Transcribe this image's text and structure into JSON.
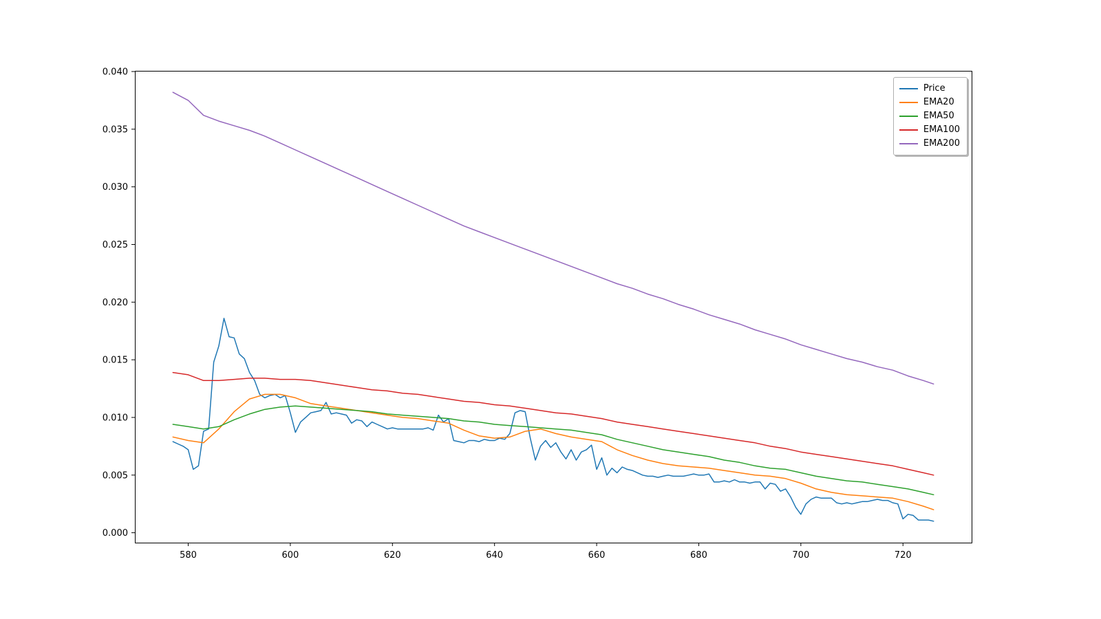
{
  "figure": {
    "background": "#ffffff",
    "axes_frame_color": "#000000"
  },
  "chart_data": {
    "type": "line",
    "title": "",
    "xlabel": "",
    "ylabel": "",
    "grid": false,
    "xlim": [
      569.55,
      733.45
    ],
    "ylim": [
      -0.00086,
      0.04006
    ],
    "x_ticks": [
      580,
      600,
      620,
      640,
      660,
      680,
      700,
      720
    ],
    "y_ticks": [
      0.0,
      0.005,
      0.01,
      0.015,
      0.02,
      0.025,
      0.03,
      0.035,
      0.04
    ],
    "legend": {
      "position": "upper right",
      "entries": [
        "Price",
        "EMA20",
        "EMA50",
        "EMA100",
        "EMA200"
      ]
    },
    "series": [
      {
        "name": "Price",
        "color": "#1f77b4",
        "x_start": 577,
        "x_step": 1,
        "y": [
          0.0079,
          0.0077,
          0.0075,
          0.0072,
          0.0055,
          0.0058,
          0.0088,
          0.009,
          0.0148,
          0.0162,
          0.0186,
          0.017,
          0.0169,
          0.0155,
          0.0151,
          0.0139,
          0.0132,
          0.012,
          0.0117,
          0.0119,
          0.012,
          0.0117,
          0.0119,
          0.0104,
          0.0087,
          0.0096,
          0.01,
          0.0104,
          0.0105,
          0.0106,
          0.0113,
          0.0103,
          0.0104,
          0.0103,
          0.0102,
          0.0095,
          0.0098,
          0.0097,
          0.0092,
          0.0096,
          0.0094,
          0.0092,
          0.009,
          0.0091,
          0.009,
          0.009,
          0.009,
          0.009,
          0.009,
          0.009,
          0.0091,
          0.0089,
          0.0102,
          0.0096,
          0.0099,
          0.008,
          0.0079,
          0.0078,
          0.008,
          0.008,
          0.0079,
          0.0081,
          0.008,
          0.008,
          0.0082,
          0.0081,
          0.0086,
          0.0104,
          0.0106,
          0.0105,
          0.0082,
          0.0063,
          0.0075,
          0.008,
          0.0074,
          0.0078,
          0.007,
          0.0064,
          0.0072,
          0.0063,
          0.007,
          0.0072,
          0.0076,
          0.0055,
          0.0065,
          0.005,
          0.0056,
          0.0052,
          0.0057,
          0.0055,
          0.0054,
          0.0052,
          0.005,
          0.0049,
          0.0049,
          0.0048,
          0.0049,
          0.005,
          0.0049,
          0.0049,
          0.0049,
          0.005,
          0.0051,
          0.005,
          0.005,
          0.0051,
          0.0044,
          0.0044,
          0.0045,
          0.0044,
          0.0046,
          0.0044,
          0.0044,
          0.0043,
          0.0044,
          0.0044,
          0.0038,
          0.0043,
          0.0042,
          0.0036,
          0.0038,
          0.0031,
          0.0022,
          0.0016,
          0.0025,
          0.0029,
          0.0031,
          0.003,
          0.003,
          0.003,
          0.0026,
          0.0025,
          0.0026,
          0.0025,
          0.0026,
          0.0027,
          0.0027,
          0.0028,
          0.0029,
          0.0028,
          0.0028,
          0.0026,
          0.0025,
          0.0012,
          0.0016,
          0.0015,
          0.0011,
          0.0011,
          0.0011,
          0.001
        ]
      },
      {
        "name": "EMA20",
        "color": "#ff7f0e",
        "x": [
          577,
          580,
          583,
          586,
          589,
          592,
          595,
          598,
          601,
          604,
          607,
          610,
          613,
          616,
          619,
          622,
          625,
          628,
          631,
          634,
          637,
          640,
          643,
          646,
          649,
          652,
          655,
          658,
          661,
          664,
          667,
          670,
          673,
          676,
          679,
          682,
          685,
          688,
          691,
          694,
          697,
          700,
          703,
          706,
          709,
          712,
          715,
          718,
          721,
          724,
          726
        ],
        "y": [
          0.0083,
          0.008,
          0.0078,
          0.009,
          0.0105,
          0.0116,
          0.012,
          0.012,
          0.0117,
          0.0112,
          0.011,
          0.0108,
          0.0106,
          0.0104,
          0.0102,
          0.01,
          0.0099,
          0.0097,
          0.0095,
          0.0089,
          0.0084,
          0.0082,
          0.0083,
          0.0088,
          0.009,
          0.0086,
          0.0083,
          0.0081,
          0.0079,
          0.0072,
          0.0067,
          0.0063,
          0.006,
          0.0058,
          0.0057,
          0.0056,
          0.0054,
          0.0052,
          0.005,
          0.0049,
          0.0047,
          0.0043,
          0.0038,
          0.0035,
          0.0033,
          0.0032,
          0.0031,
          0.003,
          0.0027,
          0.0023,
          0.002
        ]
      },
      {
        "name": "EMA50",
        "color": "#2ca02c",
        "x": [
          577,
          580,
          583,
          586,
          589,
          592,
          595,
          598,
          601,
          604,
          607,
          610,
          613,
          616,
          619,
          622,
          625,
          628,
          631,
          634,
          637,
          640,
          643,
          646,
          649,
          652,
          655,
          658,
          661,
          664,
          667,
          670,
          673,
          676,
          679,
          682,
          685,
          688,
          691,
          694,
          697,
          700,
          703,
          706,
          709,
          712,
          715,
          718,
          721,
          724,
          726
        ],
        "y": [
          0.0094,
          0.0092,
          0.009,
          0.0092,
          0.0098,
          0.0103,
          0.0107,
          0.0109,
          0.011,
          0.0109,
          0.0108,
          0.0107,
          0.0106,
          0.0105,
          0.0103,
          0.0102,
          0.0101,
          0.01,
          0.0099,
          0.0097,
          0.0096,
          0.0094,
          0.0093,
          0.0092,
          0.0091,
          0.009,
          0.0089,
          0.0087,
          0.0085,
          0.0081,
          0.0078,
          0.0075,
          0.0072,
          0.007,
          0.0068,
          0.0066,
          0.0063,
          0.0061,
          0.0058,
          0.0056,
          0.0055,
          0.0052,
          0.0049,
          0.0047,
          0.0045,
          0.0044,
          0.0042,
          0.004,
          0.0038,
          0.0035,
          0.0033
        ]
      },
      {
        "name": "EMA100",
        "color": "#d62728",
        "x": [
          577,
          580,
          583,
          586,
          589,
          592,
          595,
          598,
          601,
          604,
          607,
          610,
          613,
          616,
          619,
          622,
          625,
          628,
          631,
          634,
          637,
          640,
          643,
          646,
          649,
          652,
          655,
          658,
          661,
          664,
          667,
          670,
          673,
          676,
          679,
          682,
          685,
          688,
          691,
          694,
          697,
          700,
          703,
          706,
          709,
          712,
          715,
          718,
          721,
          724,
          726
        ],
        "y": [
          0.0139,
          0.0137,
          0.0132,
          0.0132,
          0.0133,
          0.0134,
          0.0134,
          0.0133,
          0.0133,
          0.0132,
          0.013,
          0.0128,
          0.0126,
          0.0124,
          0.0123,
          0.0121,
          0.012,
          0.0118,
          0.0116,
          0.0114,
          0.0113,
          0.0111,
          0.011,
          0.0108,
          0.0106,
          0.0104,
          0.0103,
          0.0101,
          0.0099,
          0.0096,
          0.0094,
          0.0092,
          0.009,
          0.0088,
          0.0086,
          0.0084,
          0.0082,
          0.008,
          0.0078,
          0.0075,
          0.0073,
          0.007,
          0.0068,
          0.0066,
          0.0064,
          0.0062,
          0.006,
          0.0058,
          0.0055,
          0.0052,
          0.005
        ]
      },
      {
        "name": "EMA200",
        "color": "#9467bd",
        "x": [
          577,
          580,
          583,
          586,
          589,
          592,
          595,
          598,
          601,
          604,
          607,
          610,
          613,
          616,
          619,
          622,
          625,
          628,
          631,
          634,
          637,
          640,
          643,
          646,
          649,
          652,
          655,
          658,
          661,
          664,
          667,
          670,
          673,
          676,
          679,
          682,
          685,
          688,
          691,
          694,
          697,
          700,
          703,
          706,
          709,
          712,
          715,
          718,
          721,
          724,
          726
        ],
        "y": [
          0.0382,
          0.0375,
          0.0362,
          0.0357,
          0.0353,
          0.0349,
          0.0344,
          0.0338,
          0.0332,
          0.0326,
          0.032,
          0.0314,
          0.0308,
          0.0302,
          0.0296,
          0.029,
          0.0284,
          0.0278,
          0.0272,
          0.0266,
          0.0261,
          0.0256,
          0.0251,
          0.0246,
          0.0241,
          0.0236,
          0.0231,
          0.0226,
          0.0221,
          0.0216,
          0.0212,
          0.0207,
          0.0203,
          0.0198,
          0.0194,
          0.0189,
          0.0185,
          0.0181,
          0.0176,
          0.0172,
          0.0168,
          0.0163,
          0.0159,
          0.0155,
          0.0151,
          0.0148,
          0.0144,
          0.0141,
          0.0136,
          0.0132,
          0.0129
        ]
      }
    ]
  }
}
